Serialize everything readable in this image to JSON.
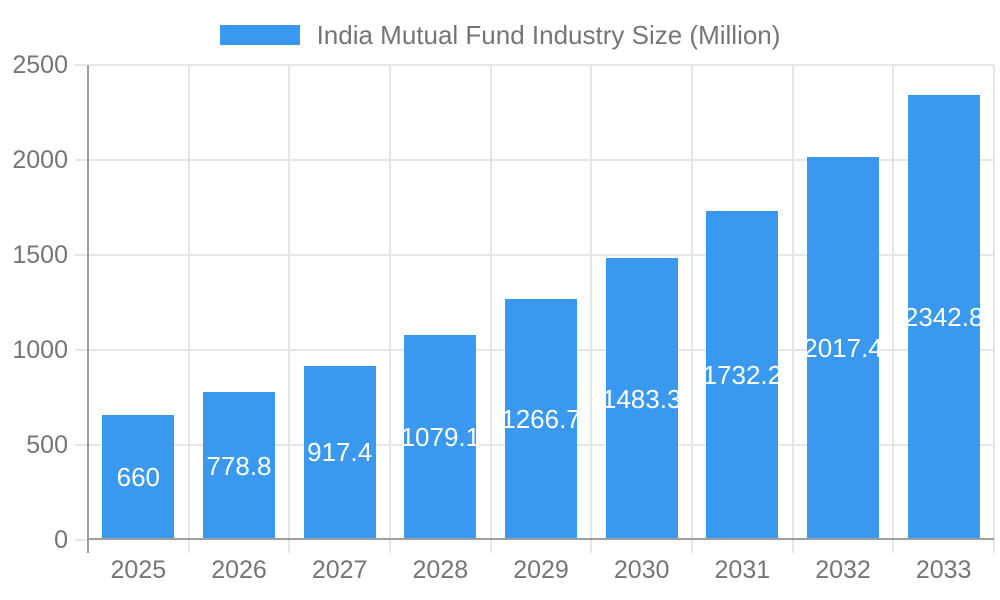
{
  "chart_data": {
    "type": "bar",
    "title": "India Mutual Fund Industry Size (Million)",
    "legend": {
      "position": "top",
      "label": "India Mutual Fund Industry Size (Million)"
    },
    "categories": [
      "2025",
      "2026",
      "2027",
      "2028",
      "2029",
      "2030",
      "2031",
      "2032",
      "2033"
    ],
    "values": [
      660,
      778.8,
      917.4,
      1079.1,
      1266.7,
      1483.3,
      1732.2,
      2017.4,
      2342.8
    ],
    "xlabel": "",
    "ylabel": "",
    "ylim": [
      0,
      2500
    ],
    "yticks": [
      0,
      500,
      1000,
      1500,
      2000,
      2500
    ],
    "grid": true,
    "value_labels_inside_bars": true,
    "colors": {
      "bar": "#3A99EE",
      "gridline": "#E6E6E6",
      "axis": "#9E9E9E",
      "tick_label": "#757575",
      "value_label": "#FFFFFF",
      "background": "#FFFFFF"
    }
  }
}
